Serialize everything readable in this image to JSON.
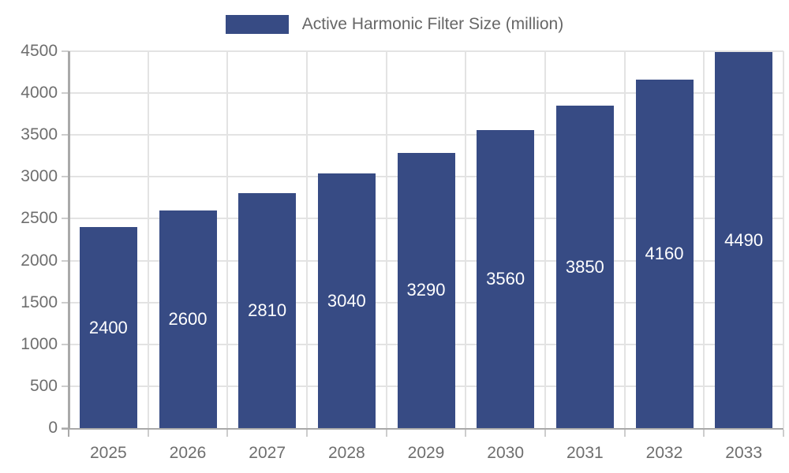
{
  "legend": {
    "label": "Active Harmonic Filter Size (million)"
  },
  "chart_data": {
    "type": "bar",
    "title": "Active Harmonic Filter Size (million)",
    "categories": [
      "2025",
      "2026",
      "2027",
      "2028",
      "2029",
      "2030",
      "2031",
      "2032",
      "2033"
    ],
    "series": [
      {
        "name": "Active Harmonic Filter Size (million)",
        "values": [
          2400,
          2600,
          2810,
          3040,
          3290,
          3560,
          3850,
          4160,
          4490
        ]
      }
    ],
    "value_labels": [
      "2400",
      "2600",
      "2810",
      "3040",
      "3290",
      "3560",
      "3850",
      "4160",
      "4490"
    ],
    "xlabel": "",
    "ylabel": "",
    "ylim": [
      0,
      4500
    ],
    "yticks": [
      0,
      500,
      1000,
      1500,
      2000,
      2500,
      3000,
      3500,
      4000,
      4500
    ],
    "grid": true,
    "legend_position": "top",
    "value_label_position": "inside-center",
    "colors": {
      "bar": "#374b84",
      "value_label": "#ffffff",
      "axis_text": "#6e6e6e",
      "legend_text": "#666666",
      "gridline": "#e3e3e3",
      "axis_line": "#a9a9a9",
      "tick": "#cdcdcd",
      "background": "#ffffff"
    }
  }
}
